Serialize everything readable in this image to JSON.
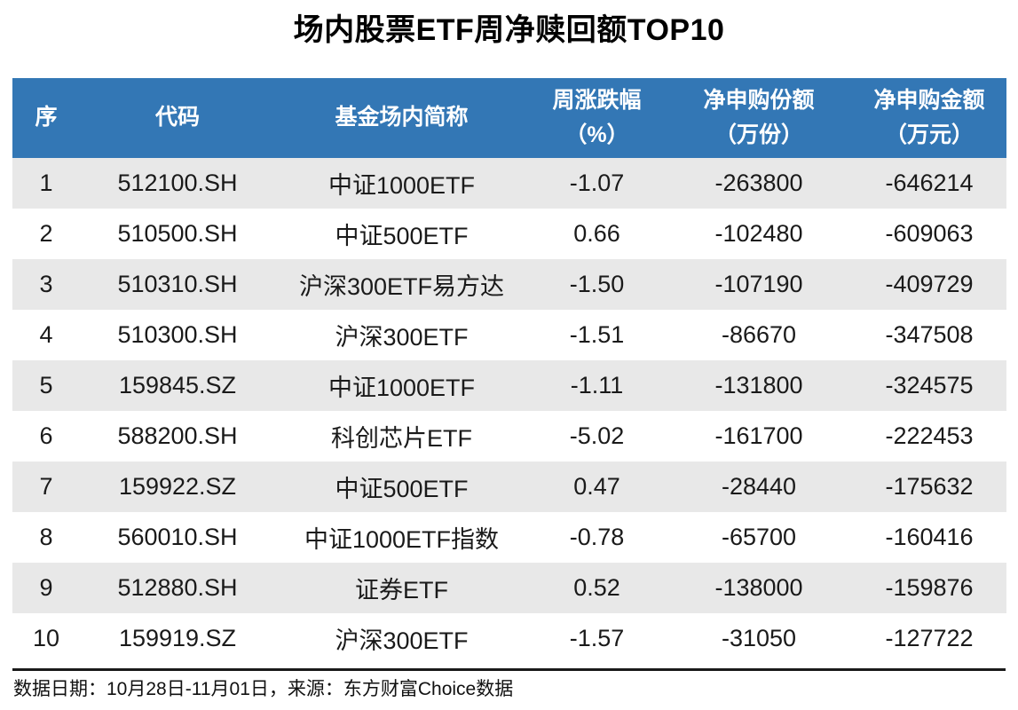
{
  "title": "场内股票ETF周净赎回额TOP10",
  "colors": {
    "header_bg": "#3377b5",
    "header_text": "#ffffff",
    "row_alt_bg": "#e8e8e8",
    "row_bg": "#ffffff",
    "text": "#1a1a1a"
  },
  "table": {
    "columns": [
      {
        "label": "序",
        "sub": ""
      },
      {
        "label": "代码",
        "sub": ""
      },
      {
        "label": "基金场内简称",
        "sub": ""
      },
      {
        "label": "周涨跌幅",
        "sub": "（%）"
      },
      {
        "label": "净申购份额",
        "sub": "（万份）"
      },
      {
        "label": "净申购金额",
        "sub": "（万元）"
      }
    ],
    "rows": [
      [
        "1",
        "512100.SH",
        "中证1000ETF",
        "-1.07",
        "-263800",
        "-646214"
      ],
      [
        "2",
        "510500.SH",
        "中证500ETF",
        "0.66",
        "-102480",
        "-609063"
      ],
      [
        "3",
        "510310.SH",
        "沪深300ETF易方达",
        "-1.50",
        "-107190",
        "-409729"
      ],
      [
        "4",
        "510300.SH",
        "沪深300ETF",
        "-1.51",
        "-86670",
        "-347508"
      ],
      [
        "5",
        "159845.SZ",
        "中证1000ETF",
        "-1.11",
        "-131800",
        "-324575"
      ],
      [
        "6",
        "588200.SH",
        "科创芯片ETF",
        "-5.02",
        "-161700",
        "-222453"
      ],
      [
        "7",
        "159922.SZ",
        "中证500ETF",
        "0.47",
        "-28440",
        "-175632"
      ],
      [
        "8",
        "560010.SH",
        "中证1000ETF指数",
        "-0.78",
        "-65700",
        "-160416"
      ],
      [
        "9",
        "512880.SH",
        "证券ETF",
        "0.52",
        "-138000",
        "-159876"
      ],
      [
        "10",
        "159919.SZ",
        "沪深300ETF",
        "-1.57",
        "-31050",
        "-127722"
      ]
    ]
  },
  "footer": "数据日期：10月28日-11月01日，来源：东方财富Choice数据",
  "chart_data": {
    "type": "table",
    "title": "场内股票ETF周净赎回额TOP10",
    "columns": [
      "序",
      "代码",
      "基金场内简称",
      "周涨跌幅（%）",
      "净申购份额（万份）",
      "净申购金额（万元）"
    ],
    "rows": [
      [
        1,
        "512100.SH",
        "中证1000ETF",
        -1.07,
        -263800,
        -646214
      ],
      [
        2,
        "510500.SH",
        "中证500ETF",
        0.66,
        -102480,
        -609063
      ],
      [
        3,
        "510310.SH",
        "沪深300ETF易方达",
        -1.5,
        -107190,
        -409729
      ],
      [
        4,
        "510300.SH",
        "沪深300ETF",
        -1.51,
        -86670,
        -347508
      ],
      [
        5,
        "159845.SZ",
        "中证1000ETF",
        -1.11,
        -131800,
        -324575
      ],
      [
        6,
        "588200.SH",
        "科创芯片ETF",
        -5.02,
        -161700,
        -222453
      ],
      [
        7,
        "159922.SZ",
        "中证500ETF",
        0.47,
        -28440,
        -175632
      ],
      [
        8,
        "560010.SH",
        "中证1000ETF指数",
        -0.78,
        -65700,
        -160416
      ],
      [
        9,
        "512880.SH",
        "证券ETF",
        0.52,
        -138000,
        -159876
      ],
      [
        10,
        "159919.SZ",
        "沪深300ETF",
        -1.57,
        -31050,
        -127722
      ]
    ],
    "footnote": "数据日期：10月28日-11月01日，来源：东方财富Choice数据"
  }
}
